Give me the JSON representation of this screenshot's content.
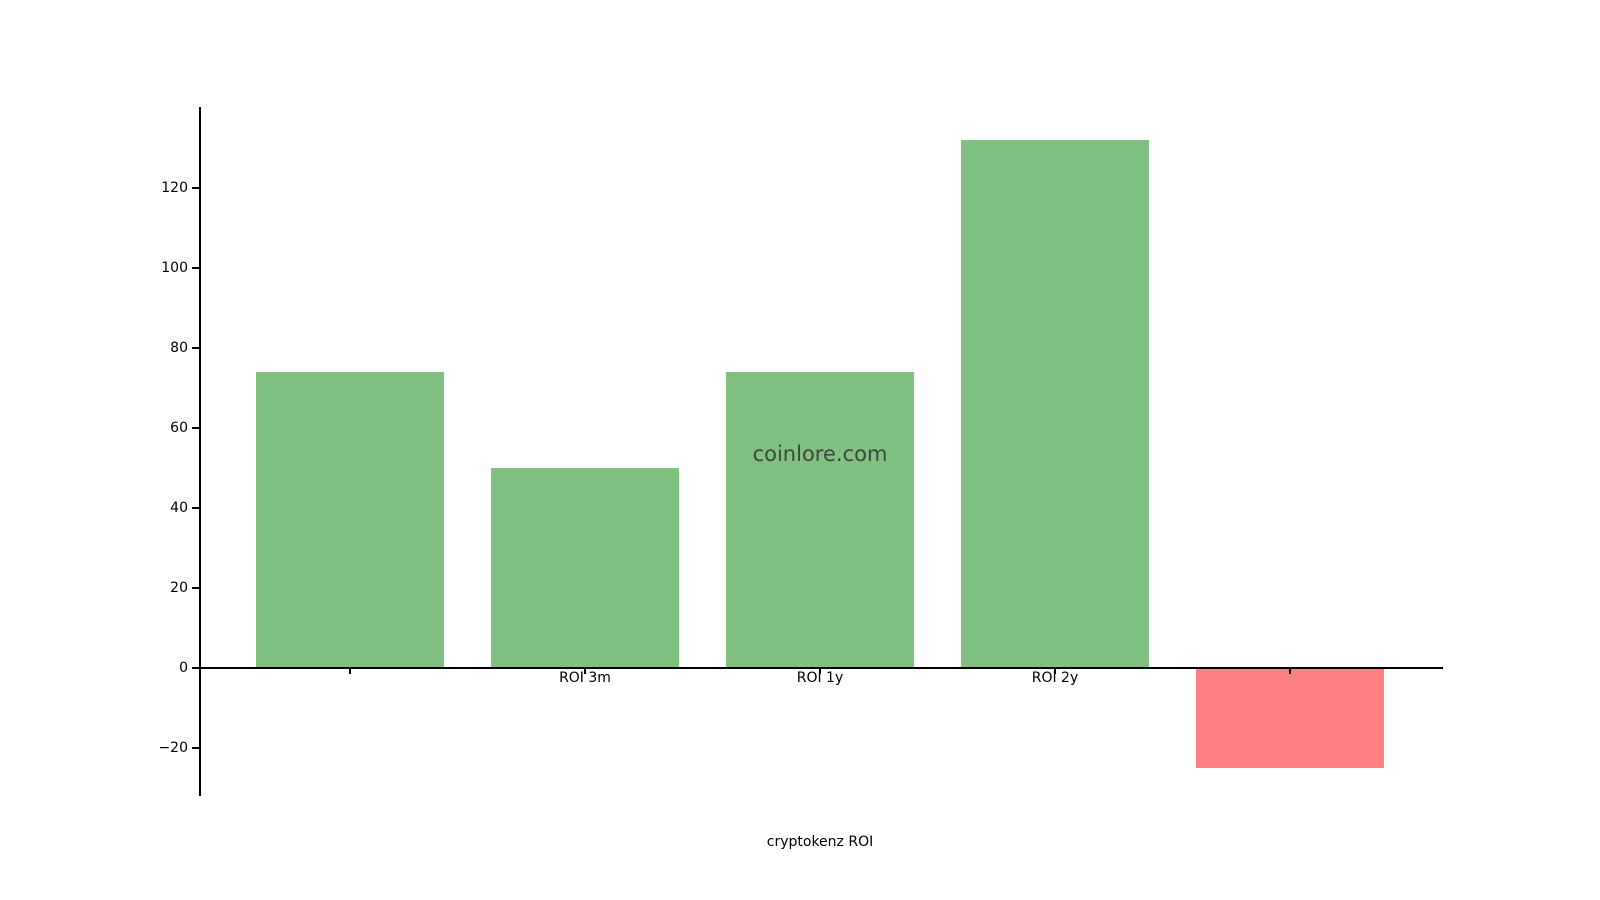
{
  "chart_data": {
    "type": "bar",
    "title": "cryptokenz ROI",
    "watermark": "coinlore.com",
    "categories": [
      "",
      "ROI 3m",
      "ROI 1y",
      "ROI 2y",
      ""
    ],
    "values": [
      74,
      50,
      74,
      132,
      -25
    ],
    "series": [
      {
        "name": "cryptokenz ROI %",
        "values": [
          74,
          50,
          74,
          132,
          -25
        ]
      }
    ],
    "yticks": [
      {
        "value": -20,
        "label": "−20"
      },
      {
        "value": 0,
        "label": "0"
      },
      {
        "value": 20,
        "label": "20"
      },
      {
        "value": 40,
        "label": "40"
      },
      {
        "value": 60,
        "label": "60"
      },
      {
        "value": 80,
        "label": "80"
      },
      {
        "value": 100,
        "label": "100"
      },
      {
        "value": 120,
        "label": "120"
      }
    ],
    "ylim": [
      -32.9,
      140.1
    ],
    "xlabel": "",
    "ylabel": "",
    "grid": false,
    "legend": null,
    "colors": {
      "positive_bar": "#80c080",
      "negative_bar": "#ff8080",
      "axis": "#000000",
      "text": "#000000",
      "watermark_text": "#3d473d"
    }
  }
}
